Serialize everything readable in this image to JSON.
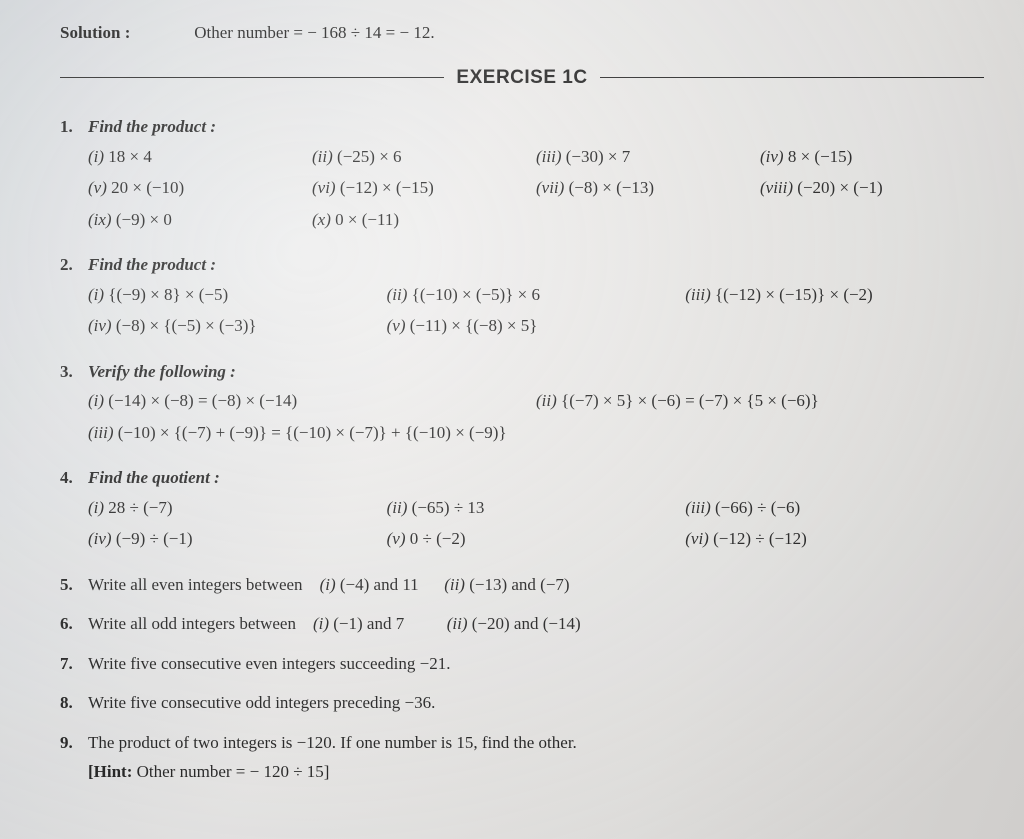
{
  "solution": {
    "label": "Solution :",
    "text": "Other number = − 168 ÷ 14 = − 12."
  },
  "exerciseTitle": "EXERCISE 1C",
  "q1": {
    "num": "1.",
    "prompt": "Find the product :",
    "parts": {
      "i": "18 × 4",
      "ii": "(−25) × 6",
      "iii": "(−30) × 7",
      "iv": "8 × (−15)",
      "v": "20 × (−10)",
      "vi": "(−12) × (−15)",
      "vii": "(−8) × (−13)",
      "viii": "(−20) × (−1)",
      "ix": "(−9) × 0",
      "x": "0 × (−11)"
    }
  },
  "q2": {
    "num": "2.",
    "prompt": "Find the product :",
    "parts": {
      "i": "{(−9) × 8} × (−5)",
      "ii": "{(−10) × (−5)} × 6",
      "iii": "{(−12) × (−15)} × (−2)",
      "iv": "(−8) × {(−5) × (−3)}",
      "v": "(−11) × {(−8) × 5}"
    }
  },
  "q3": {
    "num": "3.",
    "prompt": "Verify the following :",
    "parts": {
      "i": "(−14) × (−8) = (−8) × (−14)",
      "ii": "{(−7) × 5} × (−6) = (−7) × {5 × (−6)}",
      "iii": "(−10) × {(−7) + (−9)} = {(−10) × (−7)} + {(−10) × (−9)}"
    }
  },
  "q4": {
    "num": "4.",
    "prompt": "Find the quotient :",
    "parts": {
      "i": "28 ÷ (−7)",
      "ii": "(−65) ÷ 13",
      "iii": "(−66) ÷ (−6)",
      "iv": "(−9) ÷ (−1)",
      "v": "0 ÷ (−2)",
      "vi": "(−12) ÷ (−12)"
    }
  },
  "q5": {
    "num": "5.",
    "text": "Write all even integers between",
    "parts": {
      "i": "(−4) and 11",
      "ii": "(−13) and (−7)"
    }
  },
  "q6": {
    "num": "6.",
    "text": "Write all odd integers between",
    "parts": {
      "i": "(−1) and 7",
      "ii": "(−20) and (−14)"
    }
  },
  "q7": {
    "num": "7.",
    "text": "Write five consecutive even integers succeeding −21."
  },
  "q8": {
    "num": "8.",
    "text": "Write five consecutive odd integers preceding −36."
  },
  "q9": {
    "num": "9.",
    "text": "The product of two integers is −120. If one number is 15, find the other.",
    "hintLabel": "[Hint:",
    "hintText": " Other number = − 120 ÷ 15]"
  },
  "labels": {
    "i": "(i)",
    "ii": "(ii)",
    "iii": "(iii)",
    "iv": "(iv)",
    "v": "(v)",
    "vi": "(vi)",
    "vii": "(vii)",
    "viii": "(viii)",
    "ix": "(ix)",
    "x": "(x)"
  }
}
